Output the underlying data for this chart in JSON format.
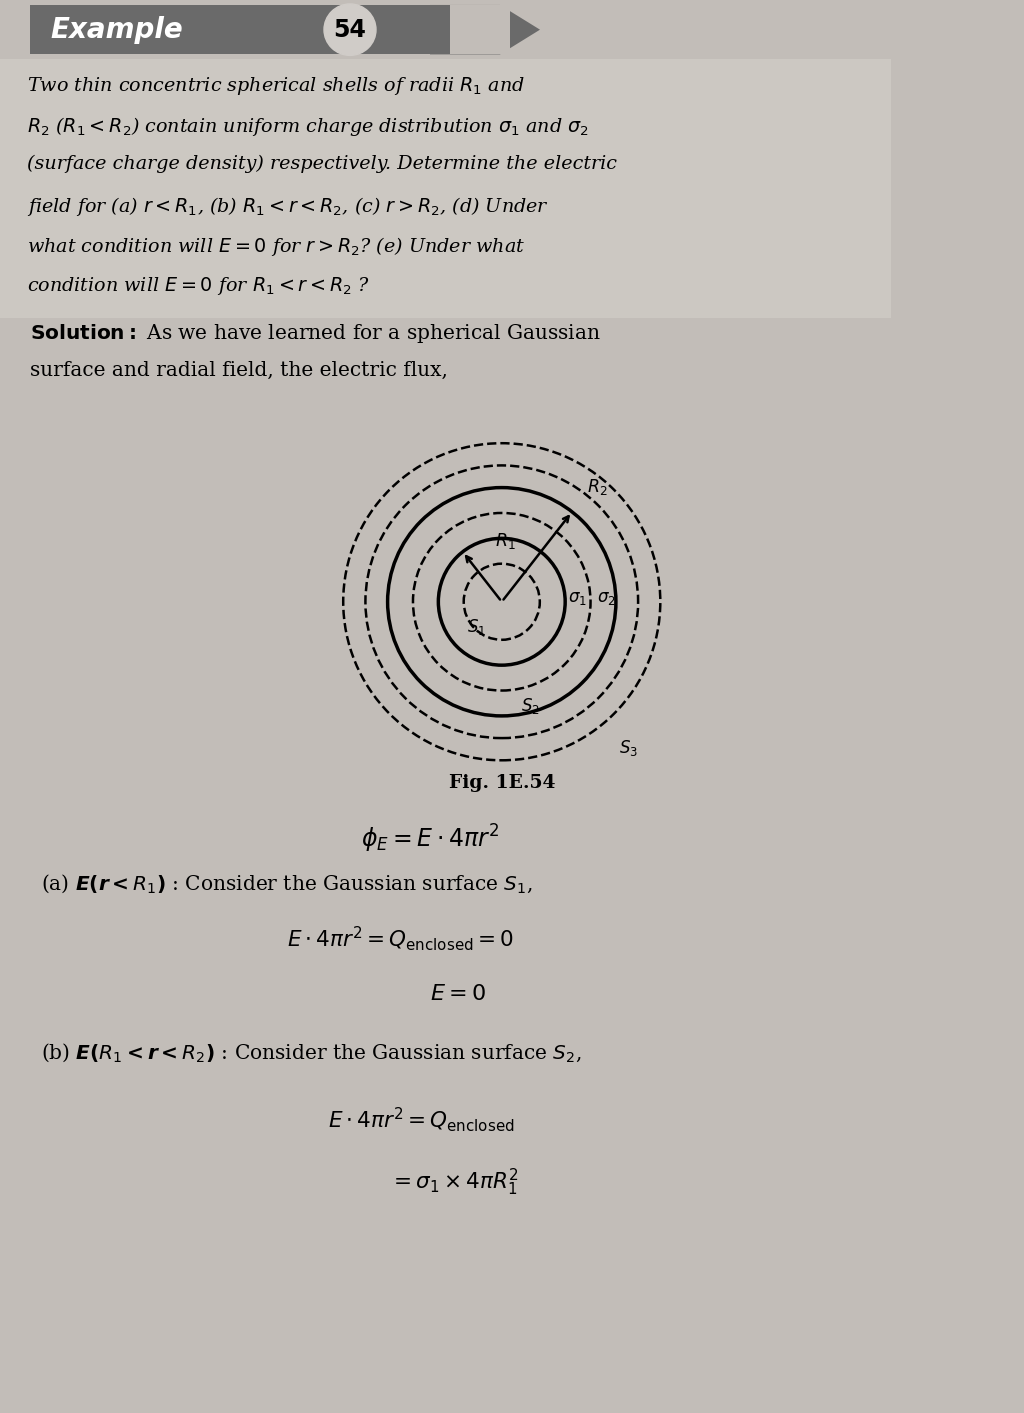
{
  "page_bg": "#c2bdb8",
  "header_bg": "#6a6a6a",
  "header_text_color": "#ffffff",
  "header_title": "Example",
  "header_number": "54",
  "problem_bg": "#ccc8c2",
  "problem_text_lines": [
    "Two thin concentric spherical shells of radii $R_1$ and",
    "$R_2$ ($R_1 < R_2$) contain uniform charge distribution $\\sigma_1$ and $\\sigma_2$",
    "(surface charge density) respectively. Determine the electric",
    "field for (a) $r < R_1$, (b) $R_1 < r < R_2$, (c) $r > R_2$, (d) Under",
    "what condition will $E = 0$ for $r > R_2$? (e) Under what",
    "condition will $E = 0$ for $R_1 < r < R_2$ ?"
  ],
  "solution_line1": "$\\mathbf{Solution:}$ As we have learned for a spherical Gaussian",
  "solution_line2": "surface and radial field, the electric flux,",
  "diagram_bg": "#aaaaaa",
  "fig_caption": "Fig. 1E.54",
  "r_S1": 0.12,
  "r_R1": 0.2,
  "r_S2": 0.28,
  "r_R2": 0.36,
  "r_mid": 0.43,
  "r_S3": 0.5,
  "flux_eq": "$\\phi_E = E \\cdot 4\\pi r^2$",
  "part_a_intro": "(a) $\\boldsymbol{E(r < R_1)}$ : Consider the Gaussian surface $S_1$,",
  "part_a_eq1": "$E \\cdot 4\\pi r^2 = Q_{\\mathrm{enclosed}} = 0$",
  "part_a_eq2": "$E = 0$",
  "part_b_intro": "(b) $\\boldsymbol{E(R_1 < r < R_2)}$ : Consider the Gaussian surface $S_2$,",
  "part_b_eq1": "$E \\cdot 4\\pi r^2 = Q_{\\mathrm{enclosed}}$",
  "part_b_eq2": "$= \\sigma_1 \\times 4\\pi R_1^2$"
}
